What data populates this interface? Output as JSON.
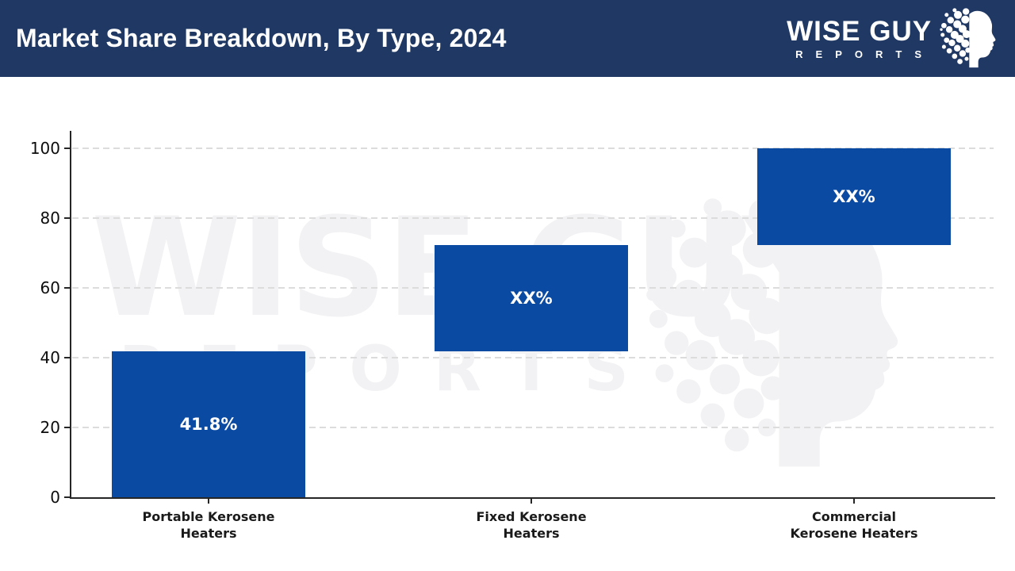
{
  "header": {
    "title": "Market Share Breakdown, By Type, 2024",
    "logo": {
      "line1": "WISE GUY",
      "line2": "REPORTS"
    }
  },
  "watermark": {
    "line1": "WISE GUY",
    "line2": "REPORTS"
  },
  "colors": {
    "header_bg": "#203864",
    "title_text": "#ffffff",
    "bar": "#0b4aa2",
    "bar_label": "#ffffff",
    "axis": "#262626",
    "gridline": "#dcdcdc",
    "watermark": "#f2f2f4"
  },
  "chart_data": {
    "type": "bar",
    "subtype": "segmented-range-stair",
    "title": "Market Share Breakdown, By Type, 2024",
    "categories": [
      [
        "Portable Kerosene",
        "Heaters"
      ],
      [
        "Fixed Kerosene",
        "Heaters"
      ],
      [
        "Commercial",
        "Kerosene Heaters"
      ]
    ],
    "segments": [
      {
        "from": 0,
        "to": 41.8,
        "label": "41.8%"
      },
      {
        "from": 41.8,
        "to": 72.3,
        "label": "XX%"
      },
      {
        "from": 72.3,
        "to": 100,
        "label": "XX%"
      }
    ],
    "yticks": [
      0,
      20,
      40,
      60,
      80,
      100
    ],
    "ylim": [
      0,
      105
    ],
    "grid": "horizontal-dashed",
    "legend": false,
    "xlabel": "",
    "ylabel": ""
  }
}
